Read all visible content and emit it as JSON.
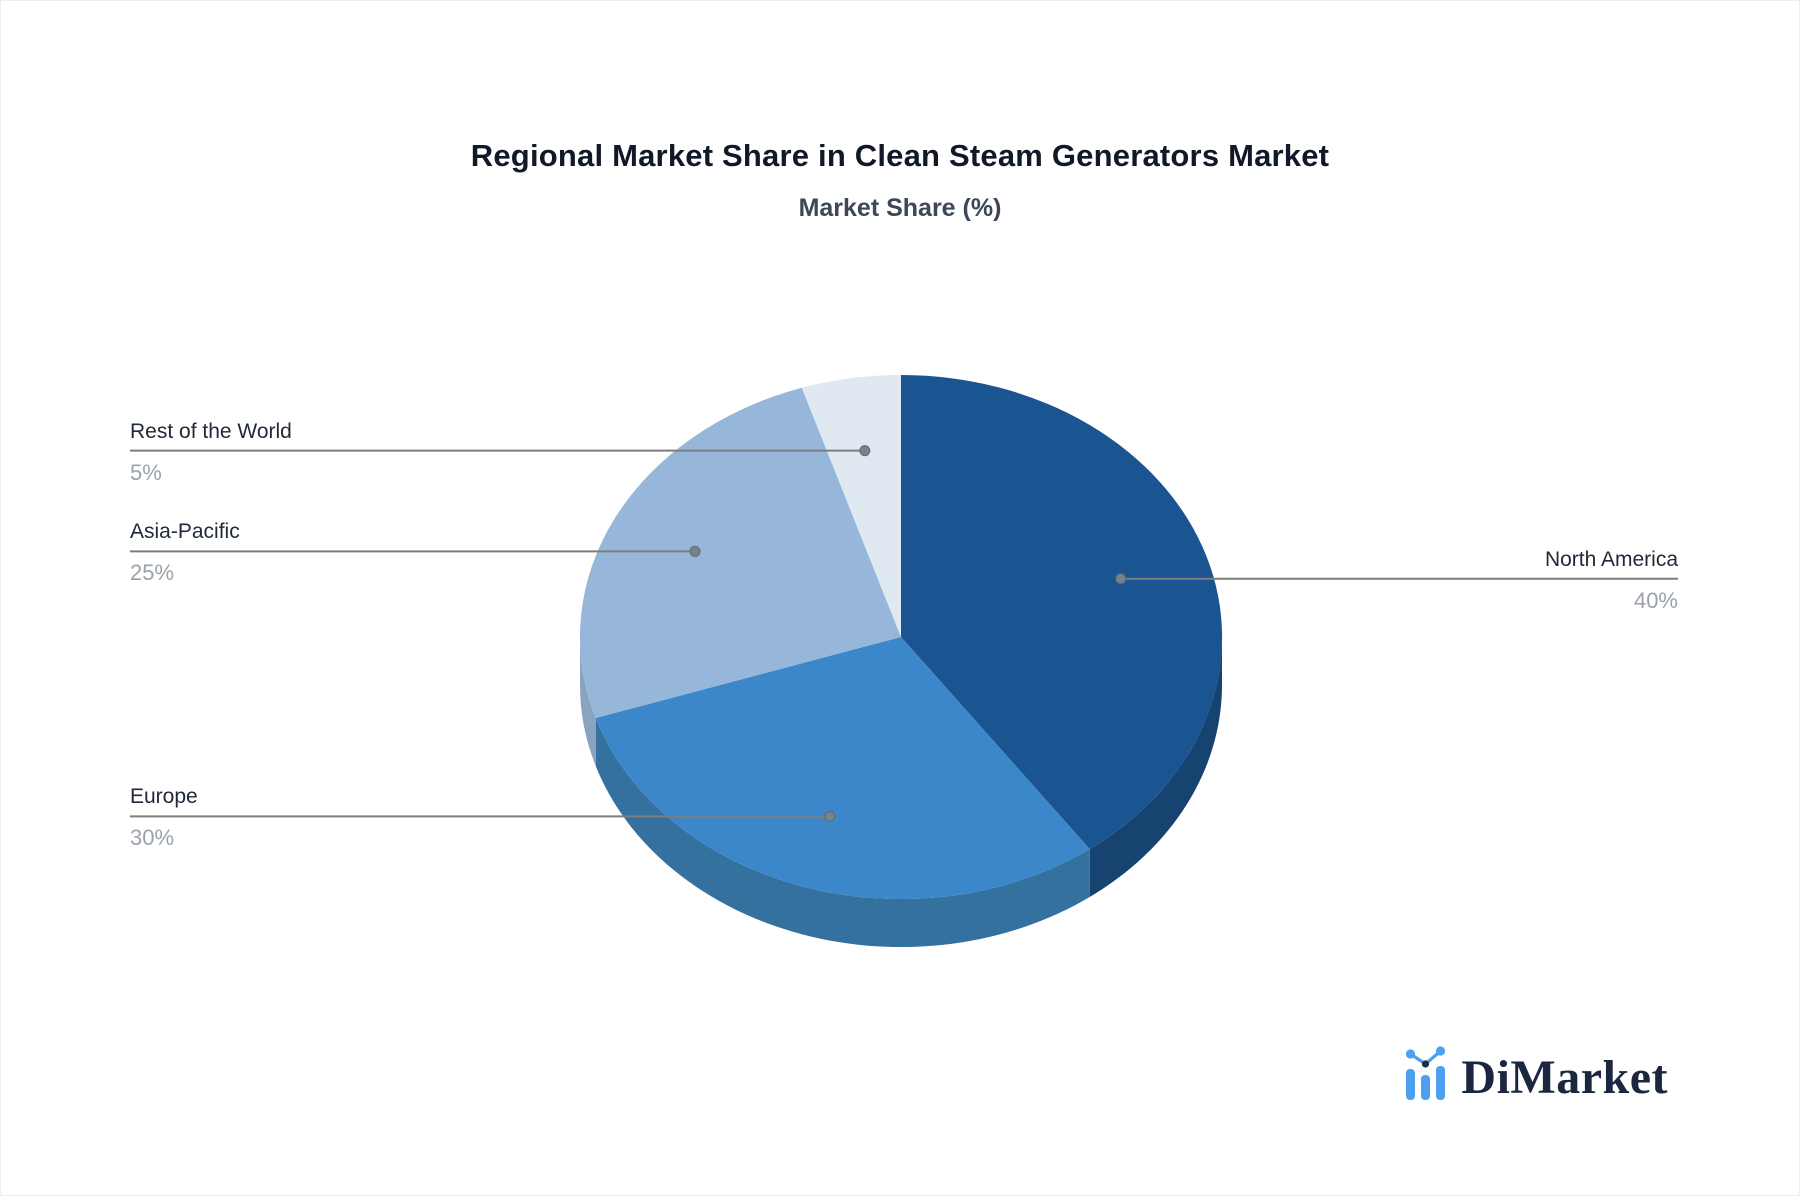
{
  "chart_data": {
    "type": "pie",
    "style": "3d",
    "title": "Regional Market Share in Clean Steam Generators Market",
    "subtitle": "Market Share (%)",
    "unit": "%",
    "direction": "clockwise",
    "start_angle_deg": 0,
    "legend_position": "none",
    "labels_position": "outside-with-leader-lines",
    "slices": [
      {
        "label": "North America",
        "value": 40,
        "display": "40%",
        "top_color": "#1b5591",
        "side_color": "#16436f"
      },
      {
        "label": "Europe",
        "value": 30,
        "display": "30%",
        "top_color": "#3c87c9",
        "side_color": "#34719f"
      },
      {
        "label": "Asia-Pacific",
        "value": 25,
        "display": "25%",
        "top_color": "#97b7da",
        "side_color": "#8aa4c0"
      },
      {
        "label": "Rest of the World",
        "value": 5,
        "display": "5%",
        "top_color": "#e0e8f1",
        "side_color": "#c6d1dd"
      }
    ],
    "leader_line_color": "#7d7d7d",
    "leader_dot_color": "#76828c",
    "label_text_color": "#1f2937",
    "value_text_color": "#9aa2ab"
  },
  "branding": {
    "logo_text": "DiMarket",
    "logo_icon": "bar-chart-logo-icon",
    "logo_text_color": "#1b2740",
    "logo_accent_color": "#4d9ff0",
    "logo_dark_dot_color": "#1e2b45"
  }
}
